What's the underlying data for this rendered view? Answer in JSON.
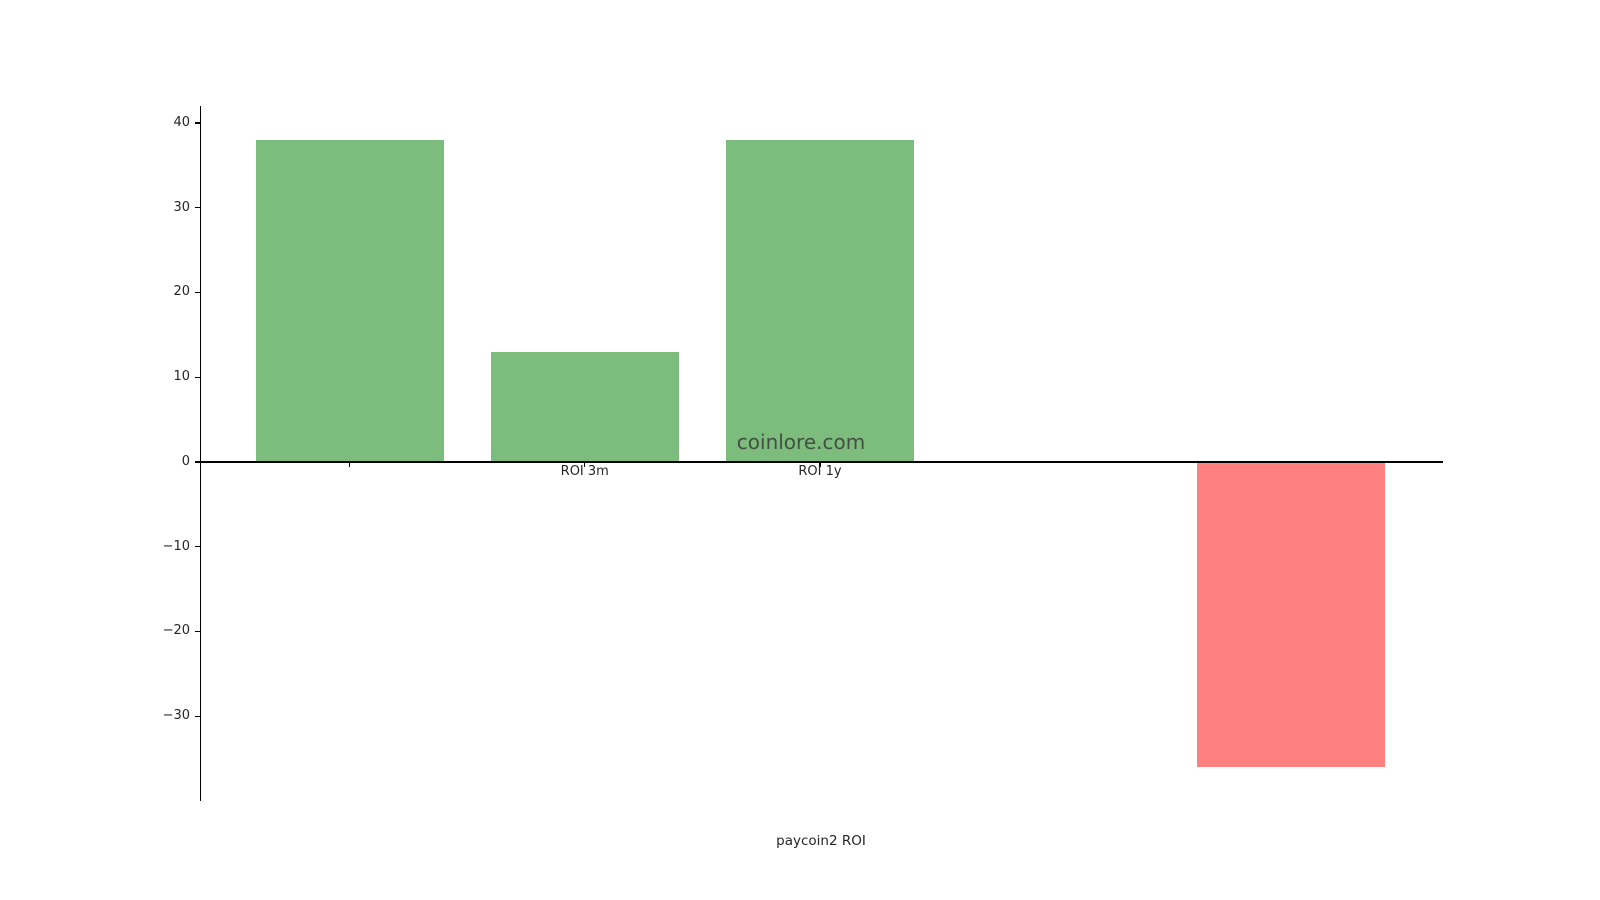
{
  "page": {
    "background": "#ffffff"
  },
  "chart_data": {
    "type": "bar",
    "title": "",
    "xlabel": "paycoin2 ROI",
    "ylabel": "",
    "watermark": "coinlore.com",
    "bars": [
      {
        "label": "",
        "value": 38,
        "slot": 0,
        "color_key": "positive"
      },
      {
        "label": "ROI 3m",
        "value": 13,
        "slot": 1,
        "color_key": "positive"
      },
      {
        "label": "ROI 1y",
        "value": 38,
        "slot": 2,
        "color_key": "positive"
      },
      {
        "label": "",
        "value": -36,
        "slot": 4,
        "color_key": "negative"
      }
    ],
    "y_ticks": [
      40,
      30,
      20,
      10,
      0,
      -10,
      -20,
      -30
    ],
    "ylim": [
      -40,
      42
    ],
    "grid": false,
    "legend_position": "none",
    "colors": {
      "positive": "#7cbc7c",
      "negative": "#ff8080",
      "axis": "#000000",
      "tick_text": "#262626"
    }
  }
}
